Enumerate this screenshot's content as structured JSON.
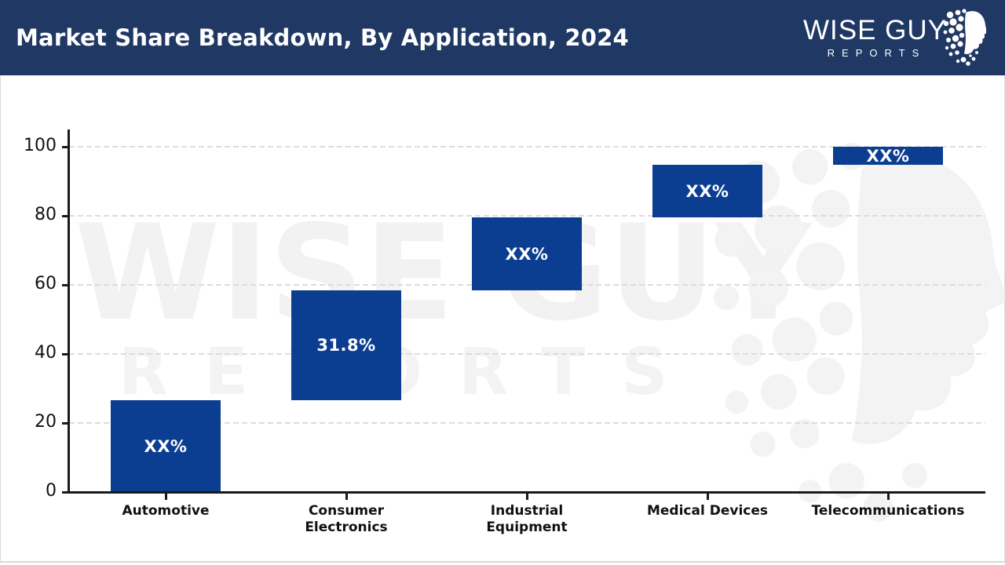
{
  "header": {
    "title": "Market Share Breakdown, By Application, 2024",
    "bg_color": "#1f3864",
    "logo_line1": "WISE GUY",
    "logo_line2": "REPORTS"
  },
  "watermark": {
    "line1": "WISE GUY",
    "line2": "REPORTS"
  },
  "colors": {
    "header_bg": "#1f3864",
    "bar": "#0b3d91",
    "grid": "#dcdcdc",
    "axis": "#1a1a1a",
    "watermark": "#f2f2f2"
  },
  "chart_data": {
    "type": "bar",
    "variant": "waterfall",
    "title": "Market Share Breakdown, By Application, 2024",
    "xlabel": "",
    "ylabel": "",
    "ylim": [
      0,
      100
    ],
    "yticks": [
      0,
      20,
      40,
      60,
      80,
      100
    ],
    "grid": "horizontal-dashed",
    "legend": "none",
    "categories": [
      "Automotive",
      "Consumer\nElectronics",
      "Industrial\nEquipment",
      "Medical Devices",
      "Telecommunications"
    ],
    "bars": [
      {
        "category": "Automotive",
        "label": "XX%",
        "start": 0,
        "end": 26.5,
        "value": 26.5
      },
      {
        "category": "Consumer\nElectronics",
        "label": "31.8%",
        "start": 26.5,
        "end": 58.3,
        "value": 31.8
      },
      {
        "category": "Industrial\nEquipment",
        "label": "XX%",
        "start": 58.3,
        "end": 79.5,
        "value": 21.2
      },
      {
        "category": "Medical Devices",
        "label": "XX%",
        "start": 79.5,
        "end": 94.7,
        "value": 15.2
      },
      {
        "category": "Telecommunications",
        "label": "XX%",
        "start": 94.7,
        "end": 100,
        "value": 5.3
      }
    ],
    "bar_color": "#0b3d91",
    "bar_label_color": "#ffffff"
  }
}
